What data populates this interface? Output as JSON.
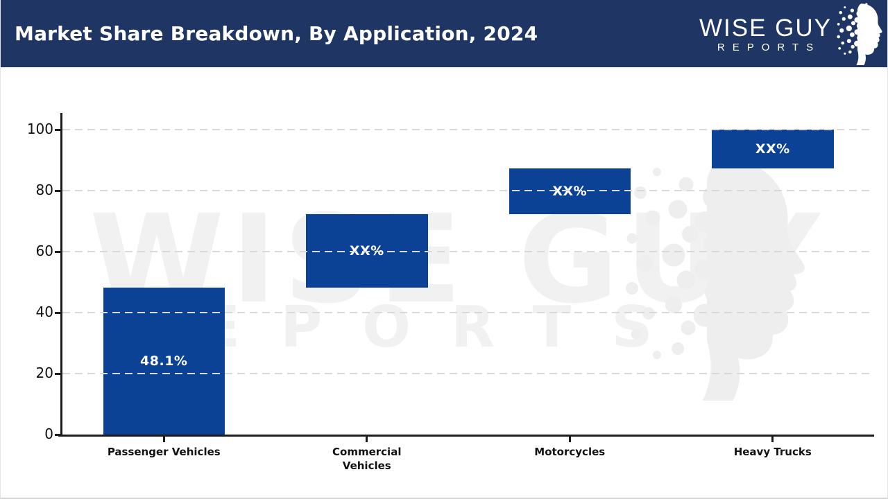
{
  "header": {
    "title": "Market Share Breakdown, By Application, 2024",
    "logo": {
      "line1": "WISE GUY",
      "line2": "REPORTS"
    }
  },
  "watermark": {
    "line1": "WISE GUY",
    "line2": "REPORTS"
  },
  "colors": {
    "header_bg": "#1f3563",
    "bar": "#0b4296",
    "axis": "#1c1c1c",
    "gridline": "#d9d9d9",
    "watermark": "#f1f1f1",
    "bar_label": "#ffffff"
  },
  "chart_data": {
    "type": "bar",
    "subtype": "waterfall",
    "title": "Market Share Breakdown, By Application, 2024",
    "xlabel": "",
    "ylabel": "",
    "categories": [
      "Passenger Vehicles",
      "Commercial Vehicles",
      "Motorcycles",
      "Heavy Trucks"
    ],
    "segments": [
      {
        "category": "Passenger Vehicles",
        "lines": [
          "Passenger Vehicles"
        ],
        "start": 0,
        "end": 48.1,
        "label": "48.1%"
      },
      {
        "category": "Commercial Vehicles",
        "lines": [
          "Commercial",
          "Vehicles"
        ],
        "start": 48.1,
        "end": 72.3,
        "label": "XX%"
      },
      {
        "category": "Motorcycles",
        "lines": [
          "Motorcycles"
        ],
        "start": 72.3,
        "end": 87.2,
        "label": "XX%"
      },
      {
        "category": "Heavy Trucks",
        "lines": [
          "Heavy Trucks"
        ],
        "start": 87.2,
        "end": 100,
        "label": "XX%"
      }
    ],
    "yticks": [
      0,
      20,
      40,
      60,
      80,
      100
    ],
    "ylim": [
      0,
      105
    ],
    "grid": "horizontal dashed, drawn above bars",
    "legend": "none"
  }
}
